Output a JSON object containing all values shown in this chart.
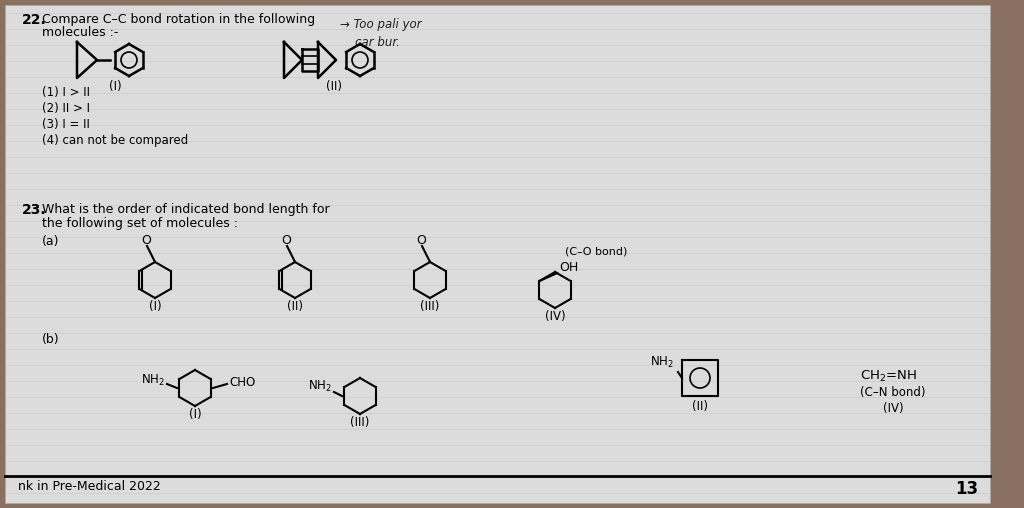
{
  "bg_color": "#8a7060",
  "paper_color": "#dcdcdc",
  "line_color": "#b0bcc8",
  "q22_num": "22.",
  "title_q22": "Compare C–C bond rotation in the following",
  "subtitle_q22": "molecules :-",
  "annotation1": "→ Too pali yor",
  "annotation2": "car bur.",
  "label_I": "(I)",
  "label_II": "(II)",
  "options_22": [
    "(1) I > II",
    "(2) II > I",
    "(3) I = II",
    "(4) can not be compared"
  ],
  "q23_num": "23.",
  "q23_line1": "What is the order of indicated bond length for",
  "q23_line2": "the following set of molecules :",
  "part_a": "(a)",
  "part_b": "(b)",
  "labels_a": [
    "(I)",
    "(II)",
    "(III)",
    "(IV)"
  ],
  "co_bond": "(C–O bond)",
  "cn_bond": "(C–N bond)",
  "footer_text": "nk in Pre-Medical 2022",
  "page_num": "13"
}
